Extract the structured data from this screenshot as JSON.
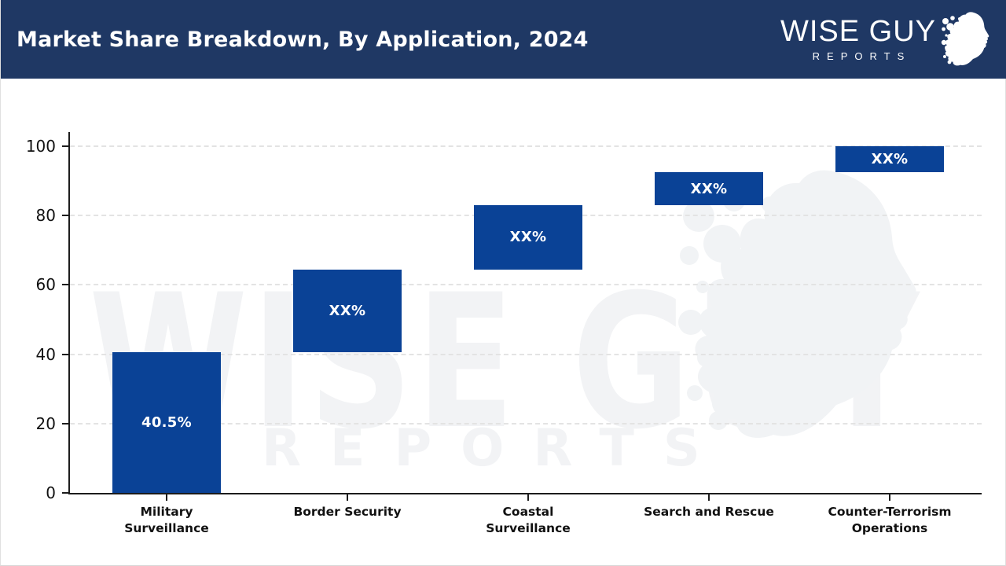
{
  "header": {
    "title": "Market Share Breakdown, By Application, 2024",
    "logo": {
      "line1": "WISE GUY",
      "line2": "REPORTS"
    }
  },
  "watermark": {
    "line1": "WISE GUY",
    "line2": "REPORTS"
  },
  "colors": {
    "header_bg": "#1f3864",
    "bar": "#0a4296",
    "bar_label": "#ffffff",
    "axis": "#1c1c1c",
    "gridline": "#e3e3e3",
    "watermark": "#f2f3f5"
  },
  "chart_data": {
    "type": "bar",
    "subtype": "waterfall",
    "title": "Market Share Breakdown, By Application, 2024",
    "categories": [
      "Military\nSurveillance",
      "Border Security",
      "Coastal\nSurveillance",
      "Search and Rescue",
      "Counter-Terrorism\nOperations"
    ],
    "bars": [
      {
        "category": "Military Surveillance",
        "start": 0,
        "end": 40.5,
        "label": "40.5%"
      },
      {
        "category": "Border Security",
        "start": 40.5,
        "end": 64.5,
        "label": "XX%"
      },
      {
        "category": "Coastal Surveillance",
        "start": 64.5,
        "end": 83,
        "label": "XX%"
      },
      {
        "category": "Search and Rescue",
        "start": 83,
        "end": 92.5,
        "label": "XX%"
      },
      {
        "category": "Counter-Terrorism Operations",
        "start": 92.5,
        "end": 100,
        "label": "XX%"
      }
    ],
    "xlabel": "",
    "ylabel": "",
    "ylim": [
      0,
      100
    ],
    "yticks": [
      0,
      20,
      40,
      60,
      80,
      100
    ],
    "grid": "horizontal-dashed",
    "legend": "none",
    "bar_color": "#0a4296"
  }
}
